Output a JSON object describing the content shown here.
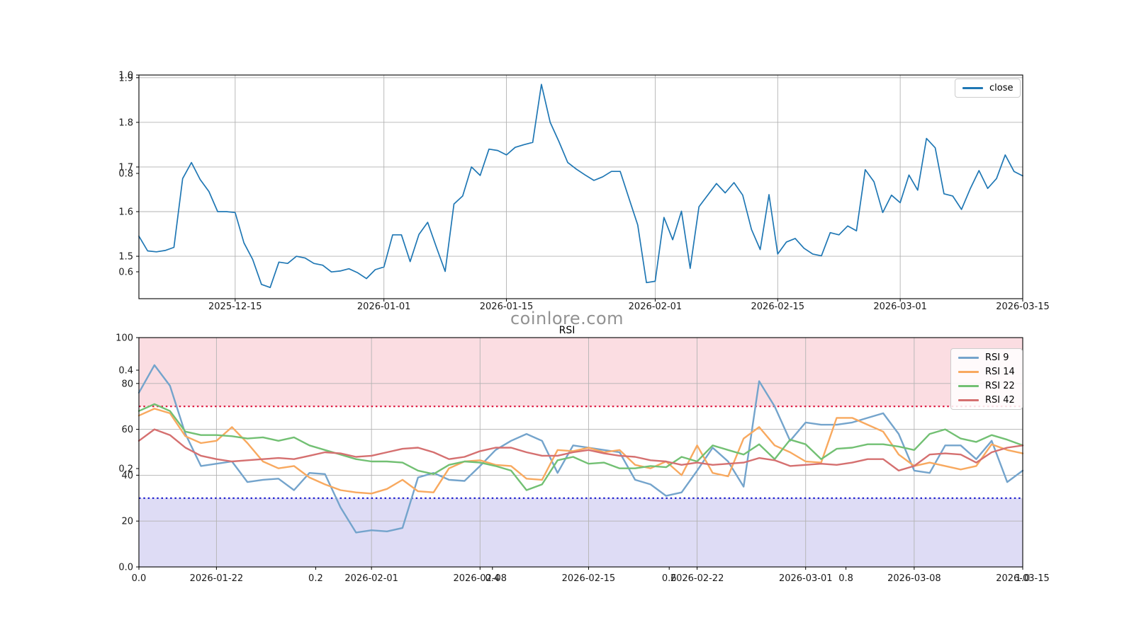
{
  "watermark": "coinlore.com",
  "background_color": "#ffffff",
  "grid_color": "#b3b3b3",
  "chart_data": [
    {
      "type": "line",
      "title": "",
      "ylabel": "",
      "xlabel": "",
      "ylim": [
        1.405,
        1.906
      ],
      "grid": true,
      "legend_position": "upper right",
      "y_ticks": [
        "1.9",
        "1.8",
        "1.7",
        "1.6",
        "1.5"
      ],
      "y_tick_values": [
        1.9,
        1.8,
        1.7,
        1.6,
        1.5
      ],
      "x_tick_labels": [
        "2025-12-15",
        "2026-01-01",
        "2026-01-15",
        "2026-02-01",
        "2026-02-15",
        "2026-03-01",
        "2026-03-15"
      ],
      "x_tick_indices": [
        11,
        28,
        42,
        59,
        73,
        87,
        101
      ],
      "series": [
        {
          "name": "close",
          "color": "#1f77b4",
          "width": 1.7,
          "values": [
            1.545,
            1.512,
            1.51,
            1.513,
            1.52,
            1.674,
            1.71,
            1.672,
            1.645,
            1.6,
            1.6,
            1.598,
            1.53,
            1.493,
            1.437,
            1.43,
            1.487,
            1.484,
            1.5,
            1.496,
            1.484,
            1.48,
            1.465,
            1.467,
            1.472,
            1.463,
            1.45,
            1.47,
            1.476,
            1.548,
            1.548,
            1.488,
            1.549,
            1.576,
            1.52,
            1.466,
            1.617,
            1.635,
            1.7,
            1.681,
            1.74,
            1.737,
            1.727,
            1.744,
            1.75,
            1.755,
            1.885,
            1.8,
            1.757,
            1.71,
            1.695,
            1.682,
            1.67,
            1.678,
            1.69,
            1.69,
            1.63,
            1.57,
            1.441,
            1.444,
            1.587,
            1.537,
            1.601,
            1.473,
            1.611,
            1.637,
            1.663,
            1.642,
            1.665,
            1.637,
            1.56,
            1.515,
            1.638,
            1.505,
            1.532,
            1.54,
            1.518,
            1.505,
            1.501,
            1.553,
            1.548,
            1.568,
            1.557,
            1.694,
            1.667,
            1.598,
            1.637,
            1.62,
            1.682,
            1.648,
            1.764,
            1.743,
            1.64,
            1.635,
            1.605,
            1.651,
            1.692,
            1.652,
            1.674,
            1.727,
            1.69,
            1.68
          ]
        }
      ]
    },
    {
      "type": "line",
      "title": "RSI",
      "ylabel": "",
      "xlabel": "",
      "ylim": [
        0,
        100
      ],
      "grid": true,
      "legend_position": "upper right",
      "y_ticks": [
        "100",
        "80",
        "60",
        "40",
        "20"
      ],
      "y_tick_values": [
        100,
        80,
        60,
        40,
        20
      ],
      "x_tick_labels": [
        "2026-01-22",
        "2026-02-01",
        "2026-02-08",
        "2026-02-15",
        "2026-02-22",
        "2026-03-01",
        "2026-03-08",
        "2026-03-15"
      ],
      "x_tick_indices": [
        5,
        15,
        22,
        29,
        36,
        43,
        50,
        57
      ],
      "bands": [
        {
          "name": "overbought-band",
          "from": 70,
          "to": 100,
          "color": "#fbdde2"
        },
        {
          "name": "oversold-band",
          "from": 0,
          "to": 30,
          "color": "#dedcf5"
        }
      ],
      "hlines": [
        {
          "name": "overbought-threshold",
          "y": 70,
          "color": "#dc143c"
        },
        {
          "name": "oversold-threshold",
          "y": 30,
          "color": "#1a1acc"
        }
      ],
      "series": [
        {
          "name": "RSI 9",
          "color": "#74a4cc",
          "width": 2.4,
          "values": [
            76,
            88,
            79,
            58,
            44,
            45,
            46,
            37,
            38,
            38.5,
            33.5,
            41,
            40.5,
            26,
            15,
            16,
            15.5,
            17,
            39,
            41,
            38,
            37.5,
            44,
            51,
            55,
            58,
            55,
            41,
            53,
            52,
            51,
            50,
            38,
            36,
            31,
            32.5,
            42,
            52,
            46,
            35,
            81,
            70,
            55,
            63,
            62,
            62,
            63,
            65,
            67,
            58,
            42,
            41,
            53,
            53,
            47,
            55,
            37,
            42
          ]
        },
        {
          "name": "RSI 14",
          "color": "#f8a95f",
          "width": 2.4,
          "values": [
            66,
            69,
            67,
            57,
            54,
            55,
            61,
            54,
            46,
            43,
            44,
            39,
            36,
            33.5,
            32.5,
            32,
            34,
            38,
            33,
            32.5,
            43,
            46,
            46.5,
            44.5,
            44,
            38.5,
            38,
            51,
            50.5,
            52,
            50,
            51,
            44.5,
            43,
            46,
            40,
            53,
            41,
            39.5,
            56,
            61,
            53,
            50,
            46,
            45.5,
            65,
            65,
            62,
            59,
            49,
            44,
            45.5,
            44,
            42.5,
            44,
            53.5,
            51,
            49.5
          ]
        },
        {
          "name": "RSI 22",
          "color": "#72c073",
          "width": 2.4,
          "values": [
            68,
            71,
            68,
            59,
            57.5,
            57.5,
            57,
            56,
            56.5,
            55,
            56.5,
            53,
            51,
            49,
            47,
            46,
            46,
            45.5,
            42,
            40.5,
            44.5,
            46,
            45.5,
            44,
            42,
            33.5,
            36,
            46.5,
            48,
            45,
            45.5,
            43,
            43,
            44,
            43.5,
            48,
            46,
            53,
            51,
            49,
            53.5,
            47,
            55.5,
            53.5,
            47,
            51.5,
            52,
            53.5,
            53.5,
            52.5,
            51,
            58,
            60,
            56,
            54.5,
            57.5,
            55.5,
            53
          ]
        },
        {
          "name": "RSI 42",
          "color": "#d57070",
          "width": 2.4,
          "values": [
            55,
            60,
            57.5,
            52,
            48.5,
            47,
            46,
            46.5,
            47,
            47.5,
            47,
            48.5,
            50,
            49.5,
            48,
            48.5,
            50,
            51.5,
            52,
            50,
            47,
            48,
            50.5,
            52,
            52,
            50,
            48.5,
            48.5,
            50,
            51,
            49.5,
            48.5,
            48,
            46.5,
            46,
            44.5,
            45.5,
            44.5,
            45,
            45.5,
            47.5,
            46.5,
            44,
            44.5,
            45,
            44.5,
            45.5,
            47,
            47,
            42,
            44,
            49,
            49.5,
            49,
            45.5,
            50,
            52,
            53
          ]
        }
      ]
    }
  ],
  "overlay_axis": {
    "y_ticks": [
      "1.0",
      "0.8",
      "0.6",
      "0.4",
      "0.2",
      "0.0"
    ],
    "x_ticks": [
      "0.0",
      "0.2",
      "0.4",
      "0.6",
      "0.8",
      "1.0"
    ]
  }
}
